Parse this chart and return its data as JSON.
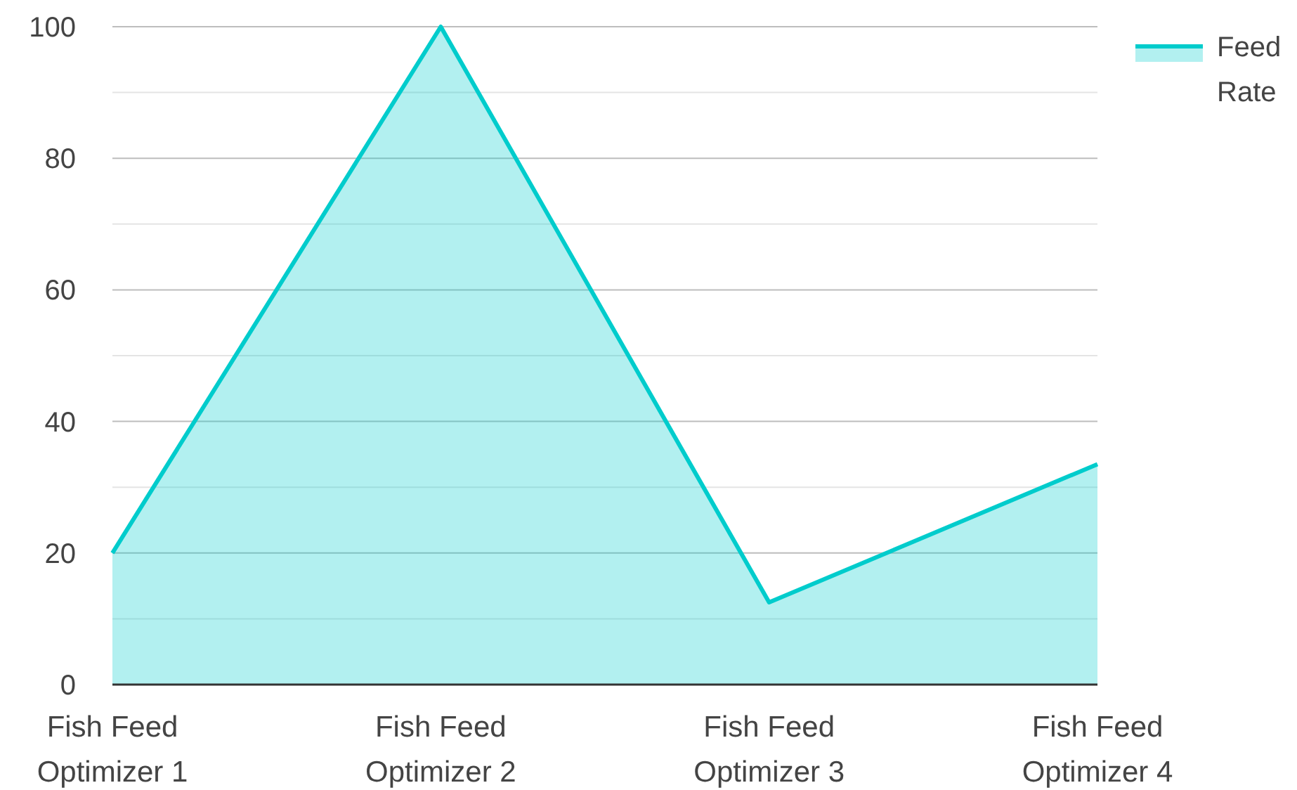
{
  "chart_data": {
    "type": "area",
    "categories": [
      "Fish Feed Optimizer 1",
      "Fish Feed Optimizer 2",
      "Fish Feed Optimizer 3",
      "Fish Feed Optimizer 4"
    ],
    "series": [
      {
        "name": "Feed Rate",
        "color": "#00cccc",
        "values": [
          20,
          100,
          12.5,
          33.5
        ]
      }
    ],
    "ylim": [
      0,
      100
    ],
    "yticks": [
      0,
      {
        "value": 10,
        "label": null
      },
      20,
      {
        "value": 30,
        "label": null
      },
      40,
      {
        "value": 50,
        "label": null
      },
      60,
      {
        "value": 70,
        "label": null
      },
      80,
      {
        "value": 90,
        "label": null
      },
      100
    ],
    "grid": "y",
    "legend": "top right"
  }
}
